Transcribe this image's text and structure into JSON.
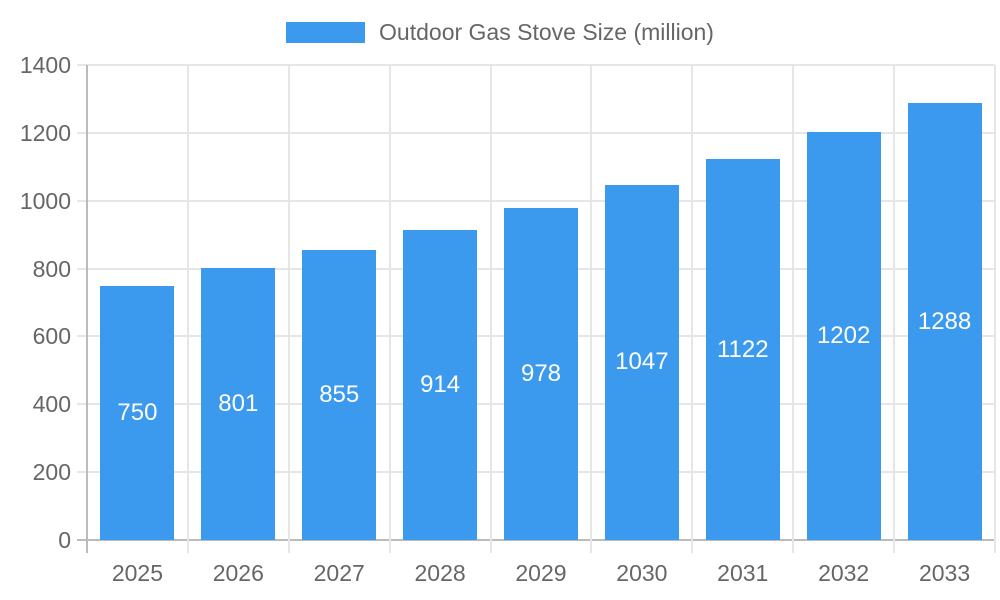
{
  "legend": {
    "label": "Outdoor Gas Stove Size (million)"
  },
  "chart_data": {
    "type": "bar",
    "title": "Outdoor Gas Stove Size (million)",
    "series_name": "Outdoor Gas Stove Size (million)",
    "categories": [
      "2025",
      "2026",
      "2027",
      "2028",
      "2029",
      "2030",
      "2031",
      "2032",
      "2033"
    ],
    "values": [
      750,
      801,
      855,
      914,
      978,
      1047,
      1122,
      1202,
      1288
    ],
    "xlabel": "",
    "ylabel": "",
    "ylim": [
      0,
      1400
    ],
    "yticks": [
      0,
      200,
      400,
      600,
      800,
      1000,
      1200,
      1400
    ],
    "grid": true,
    "legend_position": "top-center",
    "value_labels": "inside-center",
    "colors": {
      "bar": "#3b99ee",
      "grid": "#e6e6e6",
      "axis": "#bbbbbb",
      "tick_text": "#666666",
      "value_label": "#ffffff",
      "background": "#ffffff"
    }
  }
}
